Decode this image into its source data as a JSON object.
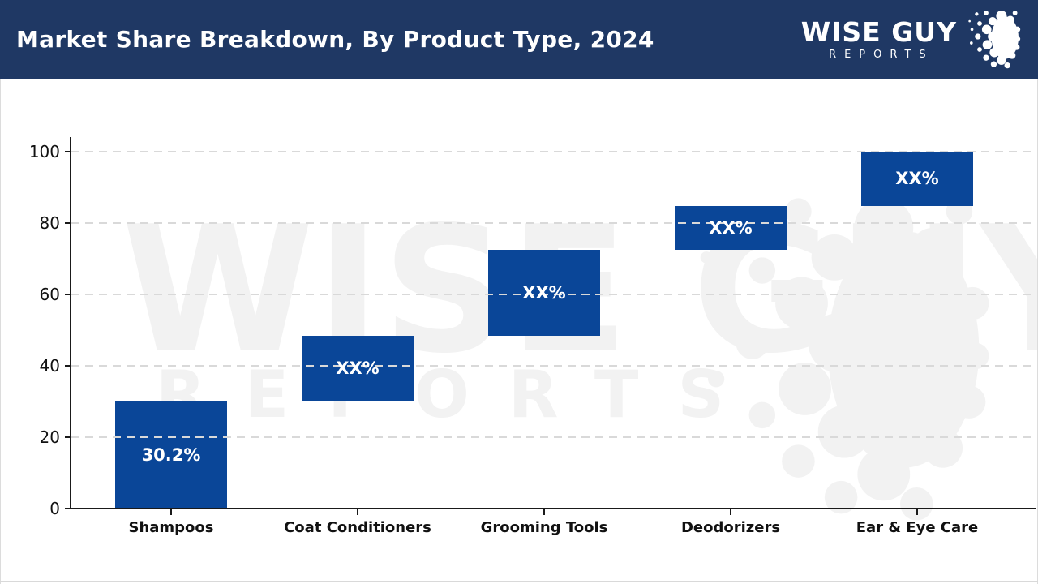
{
  "header": {
    "title": "Market Share Breakdown, By Product Type, 2024",
    "logo": {
      "wordmark": "WISE GUY",
      "subtext": "REPORTS"
    }
  },
  "watermark": {
    "wordmark": "WISE GUY",
    "subtext": "REPORTS"
  },
  "colors": {
    "header_bg": "#1f3864",
    "bar_blue": "#0a4698",
    "gridline": "#d9d9d9",
    "axis": "#1a1a1a",
    "watermark_gray": "#f2f2f2"
  },
  "chart_data": {
    "type": "bar",
    "subtype": "waterfall",
    "title": "Market Share Breakdown, By Product Type, 2024",
    "xlabel": "",
    "ylabel": "",
    "ylim": [
      0,
      100
    ],
    "y_ticks": [
      0,
      20,
      40,
      60,
      80,
      100
    ],
    "grid": "dashed-horizontal",
    "legend": "none",
    "bar_color": "#0a4698",
    "categories": [
      "Shampoos",
      "Coat Conditioners",
      "Grooming Tools",
      "Deodorizers",
      "Ear & Eye Care"
    ],
    "segments": [
      {
        "category": "Shampoos",
        "start": 0,
        "end": 30.2,
        "label": "30.2%"
      },
      {
        "category": "Coat Conditioners",
        "start": 30.2,
        "end": 48.4,
        "label": "XX%"
      },
      {
        "category": "Grooming Tools",
        "start": 48.4,
        "end": 72.6,
        "label": "XX%"
      },
      {
        "category": "Deodorizers",
        "start": 72.6,
        "end": 84.8,
        "label": "XX%"
      },
      {
        "category": "Ear & Eye Care",
        "start": 84.8,
        "end": 100,
        "label": "XX%"
      }
    ]
  }
}
